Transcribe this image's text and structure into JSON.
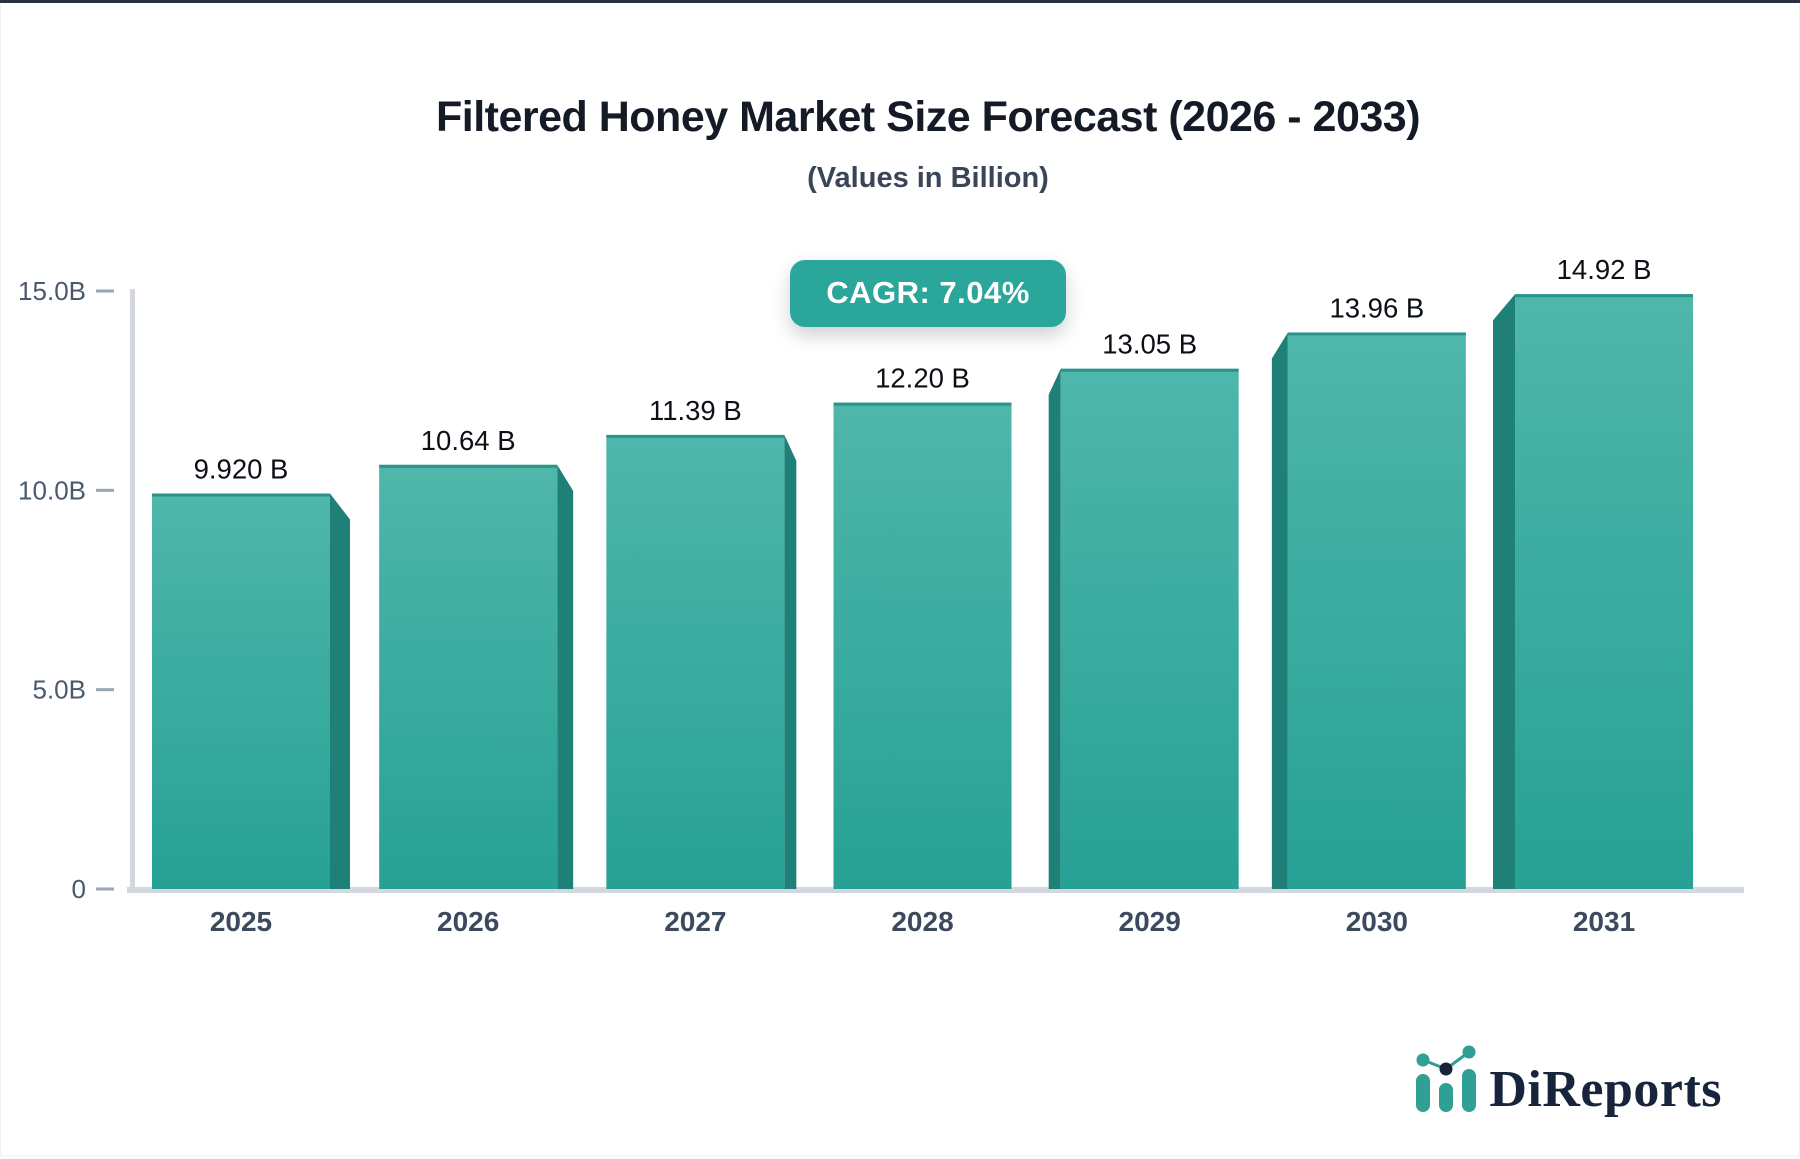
{
  "header": {
    "title": "Filtered Honey Market Size Forecast (2026 - 2033)",
    "subtitle": "(Values in Billion)",
    "cagr_label": "CAGR: 7.04%"
  },
  "chart_data": {
    "type": "bar",
    "title": "Filtered Honey Market Size Forecast (2026 - 2033)",
    "subtitle": "(Values in Billion)",
    "cagr": "7.04%",
    "categories": [
      "2025",
      "2026",
      "2027",
      "2028",
      "2029",
      "2030",
      "2031"
    ],
    "values": [
      9.92,
      10.64,
      11.39,
      12.2,
      13.05,
      13.96,
      14.92
    ],
    "value_labels": [
      "9.920 B",
      "10.64 B",
      "11.39 B",
      "12.20 B",
      "13.05 B",
      "13.96 B",
      "14.92 B"
    ],
    "xlabel": "",
    "ylabel": "",
    "ylim": [
      0,
      15
    ],
    "yticks": [
      {
        "value": 0,
        "label": "0"
      },
      {
        "value": 5,
        "label": "5.0B"
      },
      {
        "value": 10,
        "label": "10.0B"
      },
      {
        "value": 15,
        "label": "15.0B"
      }
    ],
    "grid": false,
    "legend": false,
    "style": "pseudo-3d-bars",
    "colors": {
      "bar_gradient_top": "#4fb6aa",
      "bar_gradient_bottom": "#27a195",
      "bar_side": "#1e8077",
      "bar_top_edge": "#2b9389",
      "axis_line": "#d3d7de",
      "tick_mark": "#9aa6b2",
      "y_tick_text": "#4a596e",
      "x_tick_text": "#3d4a5e",
      "value_text": "#0c1016"
    }
  },
  "footer": {
    "logo_text": "DiReports"
  },
  "colors": {
    "accent": "#2aa79a",
    "badge_text": "#ffffff",
    "title": "#141b26",
    "subtitle": "#3a4657",
    "logo_navy": "#16243c",
    "logo_teal": "#2fa093"
  }
}
